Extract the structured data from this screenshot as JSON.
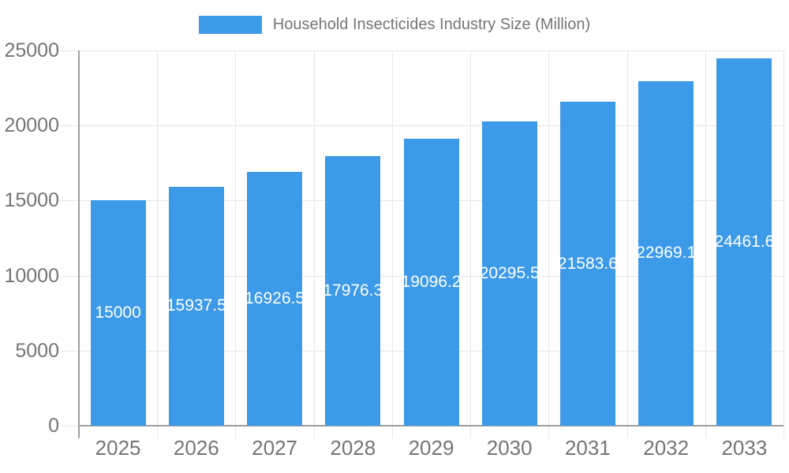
{
  "chart_data": {
    "type": "bar",
    "title": "Household Insecticides Industry Size (Million)",
    "legend": {
      "label": "Household Insecticides Industry Size (Million)",
      "position": "top"
    },
    "categories": [
      "2025",
      "2026",
      "2027",
      "2028",
      "2029",
      "2030",
      "2031",
      "2032",
      "2033"
    ],
    "series": [
      {
        "name": "Household Insecticides Industry Size (Million)",
        "values": [
          15000,
          15937.5,
          16926.5,
          17976.3,
          19096.2,
          20295.5,
          21583.6,
          22969.1,
          24461.6
        ],
        "labels": [
          "15000",
          "15937.5",
          "16926.5",
          "17976.3",
          "19096.2",
          "20295.5",
          "21583.6",
          "22969.1",
          "24461.6"
        ]
      }
    ],
    "xlabel": "",
    "ylabel": "",
    "ylim": [
      0,
      25000
    ],
    "y_ticks": [
      0,
      5000,
      10000,
      15000,
      20000,
      25000
    ],
    "grid": true,
    "legend_position": "top",
    "colors": {
      "bar": "#3D9AE9",
      "bar_label": "#FFFFFF",
      "grid_line": "#E6E6E6",
      "axis_line": "#9E9E9E",
      "tick_label": "#757575",
      "legend_text": "#757575",
      "background": "#FFFFFF"
    }
  }
}
